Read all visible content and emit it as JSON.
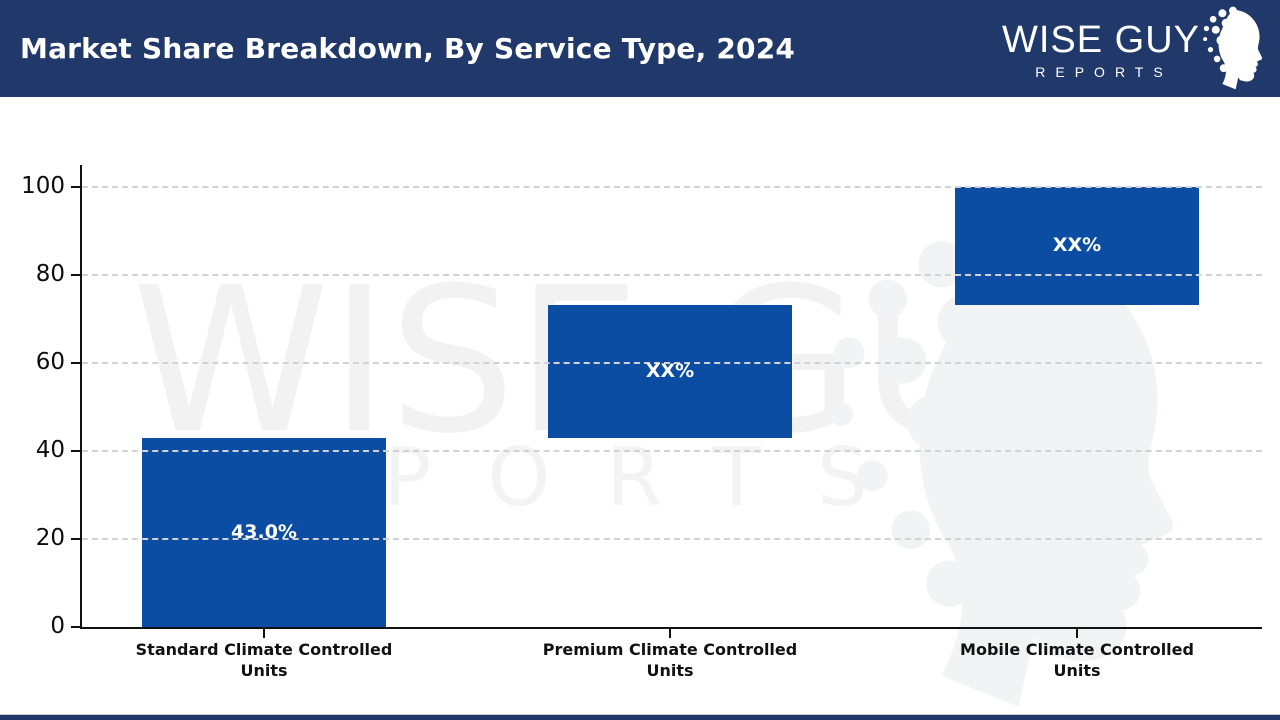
{
  "header": {
    "title": "Market Share Breakdown, By Service Type, 2024",
    "bg_color": "#20396a",
    "logo": {
      "name": "WISE GUY",
      "sub": "REPORTS"
    }
  },
  "watermark": {
    "name": "WISE GUY",
    "sub": "REPORTS"
  },
  "chart_data": {
    "type": "bar",
    "subtype": "waterfall-breakdown",
    "title": "Market Share Breakdown, By Service Type, 2024",
    "categories": [
      "Standard Climate Controlled Units",
      "Premium Climate Controlled Units",
      "Mobile Climate Controlled Units"
    ],
    "series": [
      {
        "name": "Market share (%)",
        "segments": [
          {
            "category": "Standard Climate Controlled Units",
            "start": 0,
            "end": 43,
            "label": "43.0%"
          },
          {
            "category": "Premium Climate Controlled Units",
            "start": 43,
            "end": 73.2,
            "label": "XX%"
          },
          {
            "category": "Mobile Climate Controlled Units",
            "start": 73.2,
            "end": 100,
            "label": "XX%"
          }
        ]
      }
    ],
    "yticks": [
      0,
      20,
      40,
      60,
      80,
      100
    ],
    "ylim": [
      0,
      105
    ],
    "grid": "horizontal-dashed",
    "legend": "none",
    "bar_color": "#0b4da2",
    "bar_label_color": "#ffffff"
  }
}
